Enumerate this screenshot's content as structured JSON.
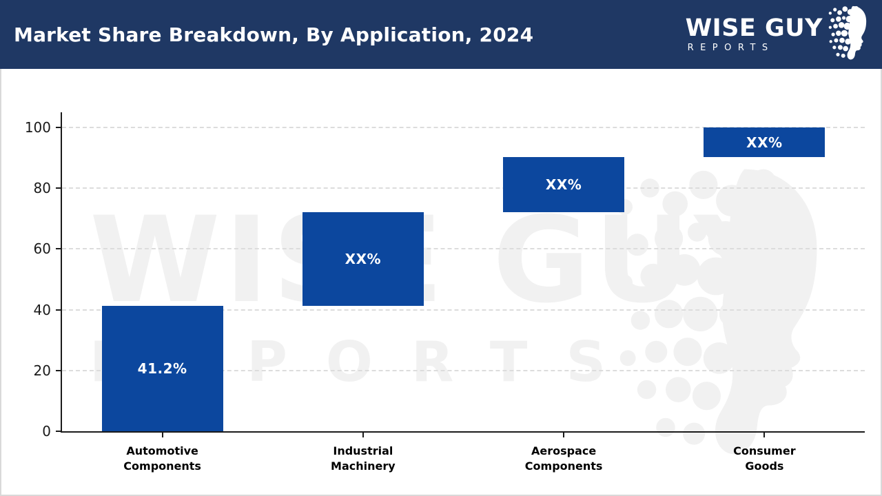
{
  "header": {
    "title": "Market Share Breakdown, By Application, 2024",
    "logo": {
      "line1": "WISE GUY",
      "line2": "REPORTS"
    }
  },
  "watermark": {
    "line1": "WISE GUY",
    "line2": "REPORTS"
  },
  "chart_data": {
    "type": "bar",
    "subtype": "waterfall",
    "title": "Market Share Breakdown, By Application, 2024",
    "categories": [
      "Automotive Components",
      "Industrial Machinery",
      "Aerospace Components",
      "Consumer Goods"
    ],
    "category_label_lines": [
      [
        "Automotive",
        "Components"
      ],
      [
        "Industrial",
        "Machinery"
      ],
      [
        "Aerospace",
        "Components"
      ],
      [
        "Consumer Goods"
      ]
    ],
    "bars": [
      {
        "category": "Automotive Components",
        "start": 0,
        "end": 41.2,
        "label": "41.2%"
      },
      {
        "category": "Industrial Machinery",
        "start": 41.2,
        "end": 72.2,
        "label": "XX%"
      },
      {
        "category": "Aerospace Components",
        "start": 72.2,
        "end": 90.2,
        "label": "XX%"
      },
      {
        "category": "Consumer Goods",
        "start": 90.2,
        "end": 100.0,
        "label": "XX%"
      }
    ],
    "yticks": [
      0,
      20,
      40,
      60,
      80,
      100
    ],
    "ylim": [
      0,
      105
    ],
    "xlabel": "",
    "ylabel": "",
    "grid": "horizontal-dashed",
    "legend": "none",
    "colors": {
      "bar": "#0c479e",
      "header_bg": "#1f3864",
      "header_text": "#ffffff",
      "bar_label_text": "#ffffff",
      "grid": "#dcdcdc",
      "axis": "#1a1a1a",
      "watermark": "#f1f1f1",
      "canvas_border": "#d9d9d9"
    }
  }
}
